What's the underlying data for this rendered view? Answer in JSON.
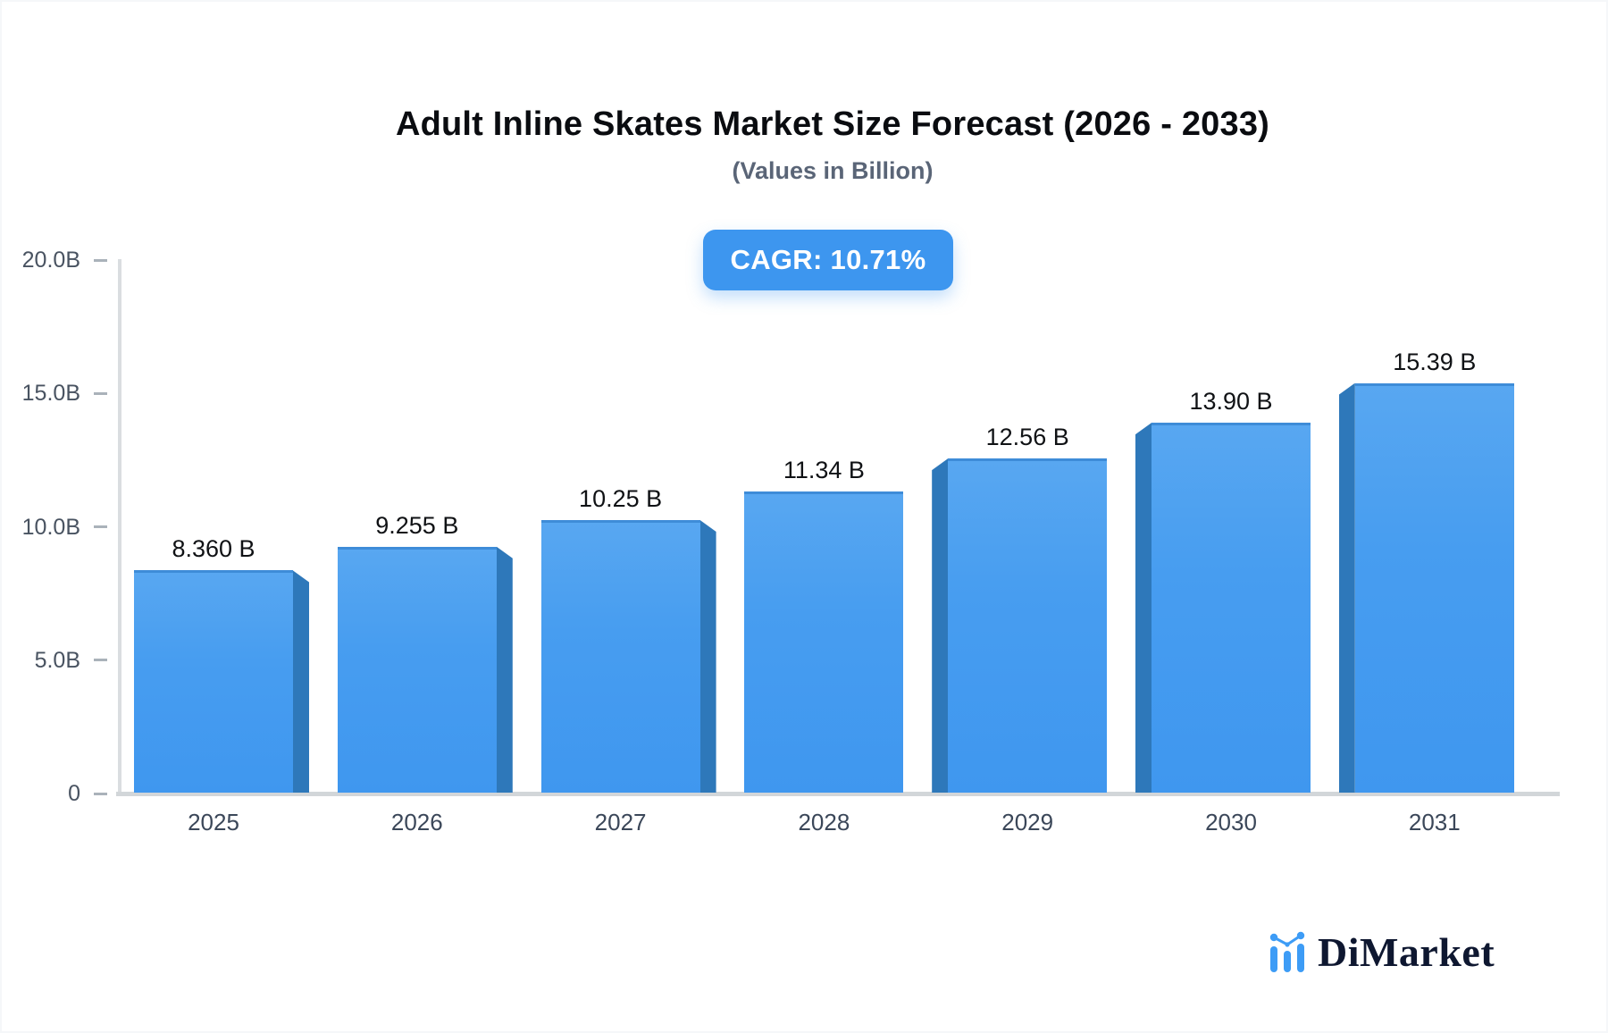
{
  "title": "Adult Inline Skates Market Size Forecast (2026 - 2033)",
  "subtitle": "(Values in Billion)",
  "cagr_badge": "CAGR: 10.71%",
  "logo": {
    "text": "DiMarket",
    "icon": "mini-bar-chart-icon"
  },
  "colors": {
    "bar_face": "#459CF0",
    "bar_side": "#2E78BA",
    "badge": "#3D96EF",
    "axis": "#D2D6D9",
    "logo_text": "#0E1730"
  },
  "chart_data": {
    "type": "bar",
    "title": "Adult Inline Skates Market Size Forecast (2026 - 2033)",
    "subtitle": "(Values in Billion)",
    "xlabel": "",
    "ylabel": "",
    "ylim": [
      0,
      20
    ],
    "grid": false,
    "legend": false,
    "categories": [
      "2025",
      "2026",
      "2027",
      "2028",
      "2029",
      "2030",
      "2031"
    ],
    "values": [
      8.36,
      9.255,
      10.25,
      11.34,
      12.56,
      13.9,
      15.39
    ],
    "value_labels": [
      "8.360 B",
      "9.255 B",
      "10.25 B",
      "11.34 B",
      "12.56 B",
      "13.90 B",
      "15.39 B"
    ],
    "yticks": [
      {
        "label": "20.0B",
        "value": 20
      },
      {
        "label": "15.0B",
        "value": 15
      },
      {
        "label": "10.0B",
        "value": 10
      },
      {
        "label": "5.0B",
        "value": 5
      },
      {
        "label": "0",
        "value": 0
      }
    ]
  }
}
